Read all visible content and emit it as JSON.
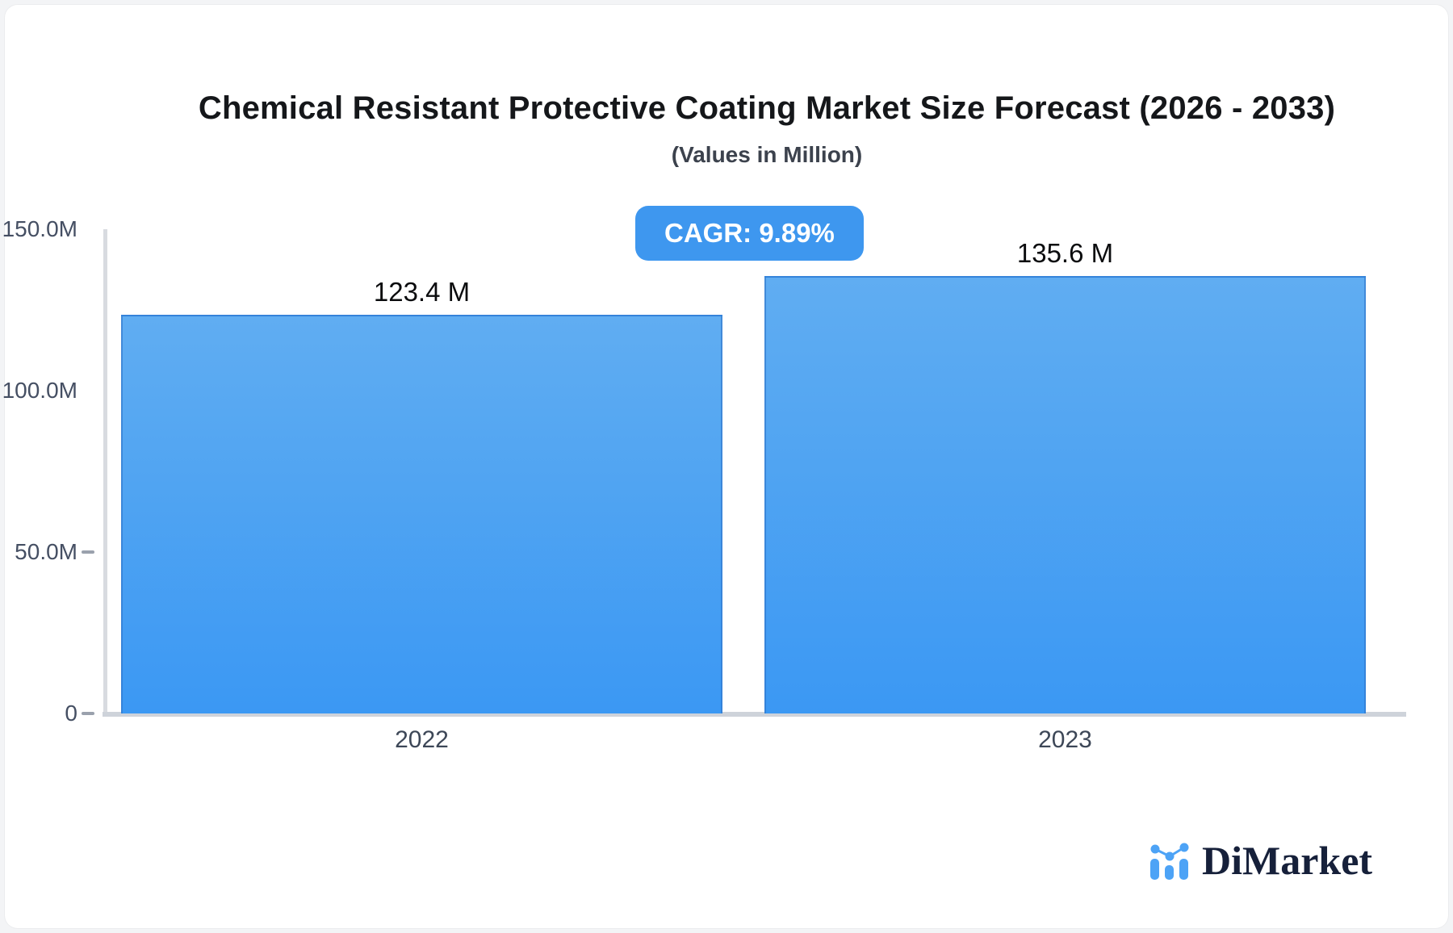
{
  "header": {
    "title": "Chemical Resistant Protective Coating Market Size Forecast (2026 - 2033)",
    "subtitle": "(Values in Million)"
  },
  "badge": {
    "label": "CAGR: 9.89%"
  },
  "chart_data": {
    "type": "bar",
    "title": "Chemical Resistant Protective Coating Market Size Forecast (2026 - 2033)",
    "subtitle": "(Values in Million)",
    "annotation": "CAGR: 9.89%",
    "unit": "Million",
    "categories": [
      "2022",
      "2023"
    ],
    "values": [
      123.4,
      135.6
    ],
    "value_labels": [
      "123.4 M",
      "135.6 M"
    ],
    "ylim": [
      0,
      150
    ],
    "yticks": [
      {
        "label": "150.0M",
        "value": 150,
        "tick_mark": false
      },
      {
        "label": "100.0M",
        "value": 100,
        "tick_mark": false
      },
      {
        "label": "50.0M",
        "value": 50,
        "tick_mark": true
      },
      {
        "label": "0",
        "value": 0,
        "tick_mark": true
      }
    ],
    "grid": false,
    "legend": false,
    "colors": {
      "bar_gradient_top": "#60adf2",
      "bar_gradient_bottom": "#3b98f3",
      "bar_border": "#3076c9",
      "badge_background": "#3e97ef",
      "badge_text": "#ffffff",
      "axis_line": "#ced3da",
      "axis_label": "#454f63",
      "value_label": "#0b0c0e",
      "title_text": "#15171a"
    }
  },
  "brand": {
    "name": "DiMarket",
    "icon": "bar-chart-logo-icon",
    "icon_color": "#4da3f6",
    "name_color": "#16203a"
  }
}
